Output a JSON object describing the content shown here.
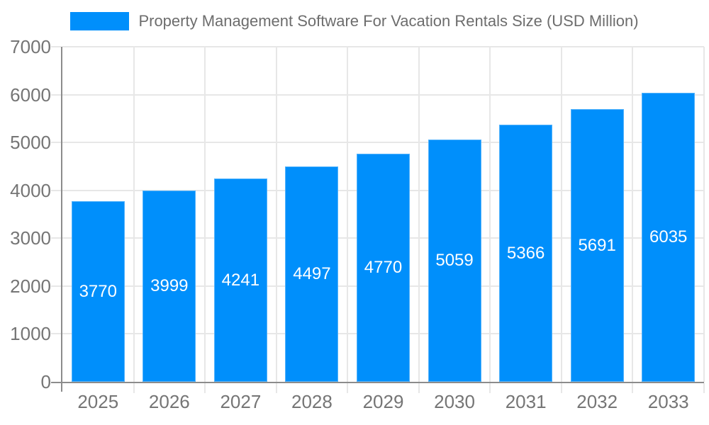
{
  "legend": {
    "label": "Property Management Software For Vacation Rentals Size (USD Million)",
    "swatch_color": "#008FFB"
  },
  "colors": {
    "bar": "#008FFB",
    "bar_stroke": "#55b4fc",
    "grid": "#e7e7e7",
    "axis": "#8c8c8c",
    "axis_label": "#757575",
    "legend_label": "#6d6d6d",
    "data_label": "#ffffff",
    "background": "#ffffff"
  },
  "chart_data": {
    "type": "bar",
    "title": "Property Management Software For Vacation Rentals Size (USD Million)",
    "categories": [
      "2025",
      "2026",
      "2027",
      "2028",
      "2029",
      "2030",
      "2031",
      "2032",
      "2033"
    ],
    "values": [
      3770,
      3999,
      4241,
      4497,
      4770,
      5059,
      5366,
      5691,
      6035
    ],
    "xlabel": "",
    "ylabel": "",
    "ylim": [
      0,
      7000
    ],
    "yticks": [
      0,
      1000,
      2000,
      3000,
      4000,
      5000,
      6000,
      7000
    ],
    "grid": true,
    "legend_position": "top",
    "data_labels": "inside-center"
  }
}
